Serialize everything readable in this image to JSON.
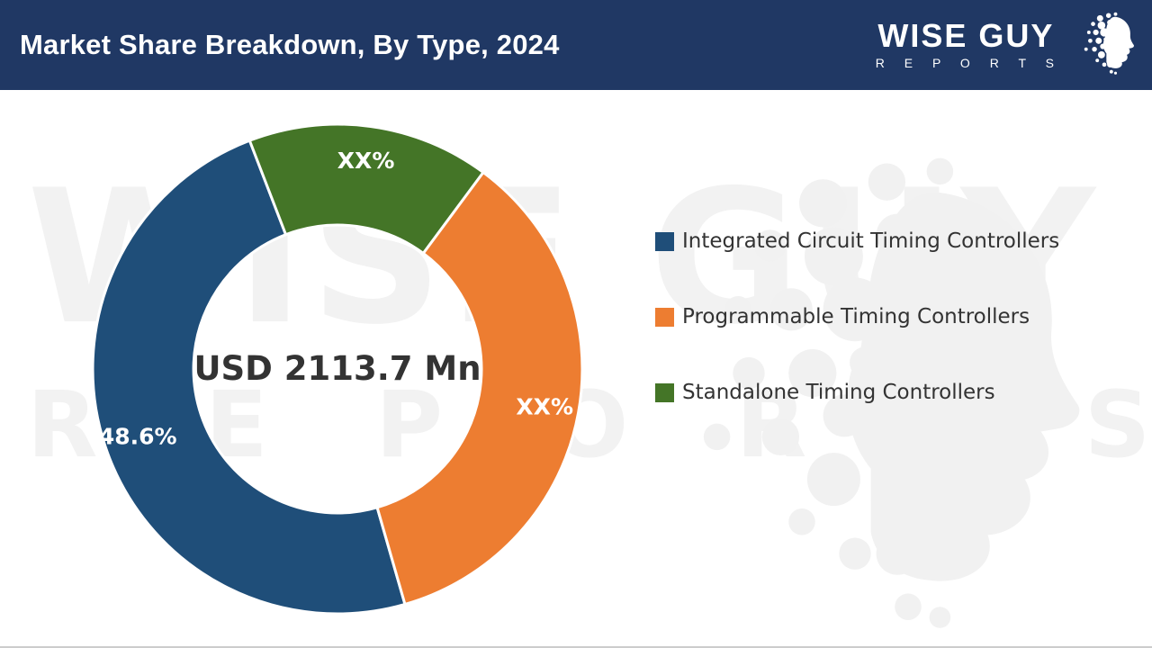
{
  "header": {
    "title": "Market Share Breakdown, By Type, 2024",
    "bg_color": "#203864",
    "logo": {
      "line1": "WISE GUY",
      "line2": "R E P O R T S"
    }
  },
  "chart_data": {
    "type": "donut",
    "title": "Market Share Breakdown, By Type, 2024",
    "center_label": "USD 2113.7 Mn",
    "start_angle_deg": 164,
    "legend_position": "right",
    "segments": [
      {
        "name": "Integrated Circuit Timing Controllers",
        "value": 48.6,
        "label": "48.6%",
        "color": "#1F4E79"
      },
      {
        "name": "Standalone Timing Controllers",
        "value": 16.0,
        "label": "XX%",
        "color": "#447527"
      },
      {
        "name": "Programmable Timing Controllers",
        "value": 35.4,
        "label": "XX%",
        "color": "#ED7D31"
      }
    ]
  },
  "legend": {
    "items": [
      {
        "label": "Integrated Circuit Timing Controllers",
        "color": "#1F4E79"
      },
      {
        "label": "Programmable Timing Controllers",
        "color": "#ED7D31"
      },
      {
        "label": "Standalone Timing Controllers",
        "color": "#447527"
      }
    ]
  },
  "watermark": {
    "line1": "WISE GUY",
    "line2": "R E P O R T S"
  }
}
